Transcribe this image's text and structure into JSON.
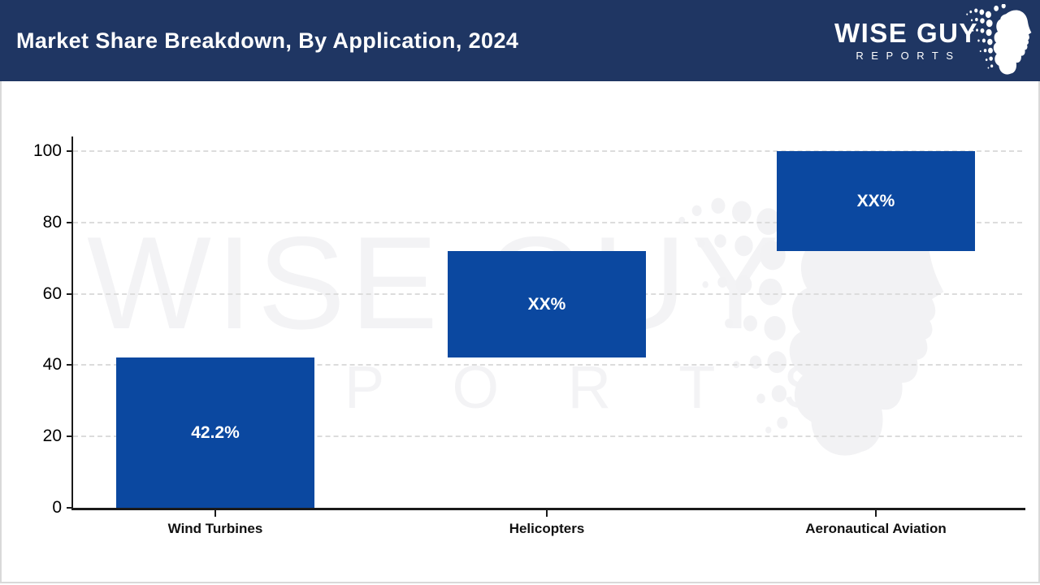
{
  "header": {
    "title": "Market Share Breakdown, By Application, 2024",
    "logo": {
      "wordmark": "WISE GUY",
      "subtext": "REPORTS"
    }
  },
  "watermark": {
    "wordmark": "WISE GUY",
    "subtext": "R E P O R T S"
  },
  "chart_data": {
    "type": "bar",
    "variant": "waterfall-stacked-segments",
    "title": "Market Share Breakdown, By Application, 2024",
    "categories": [
      "Wind Turbines",
      "Helicopters",
      "Aeronautical Aviation"
    ],
    "segments": [
      {
        "category": "Wind Turbines",
        "start": 0,
        "end": 42.2,
        "label": "42.2%"
      },
      {
        "category": "Helicopters",
        "start": 42.2,
        "end": 72,
        "label": "XX%"
      },
      {
        "category": "Aeronautical Aviation",
        "start": 72,
        "end": 100,
        "label": "XX%"
      }
    ],
    "yticks": [
      0,
      20,
      40,
      60,
      80,
      100
    ],
    "ylim": [
      0,
      104
    ],
    "xlabel": "",
    "ylabel": "",
    "grid": "horizontal-dashed",
    "legend": "none",
    "bar_color": "#0b48a0",
    "bar_label_color": "#ffffff"
  },
  "colors": {
    "header_bg": "#1f3663",
    "bar": "#0b48a0",
    "grid": "#dcdcdc",
    "axis": "#1a1a1a",
    "watermark": "#f3f3f5",
    "border": "#d9d9d9"
  }
}
